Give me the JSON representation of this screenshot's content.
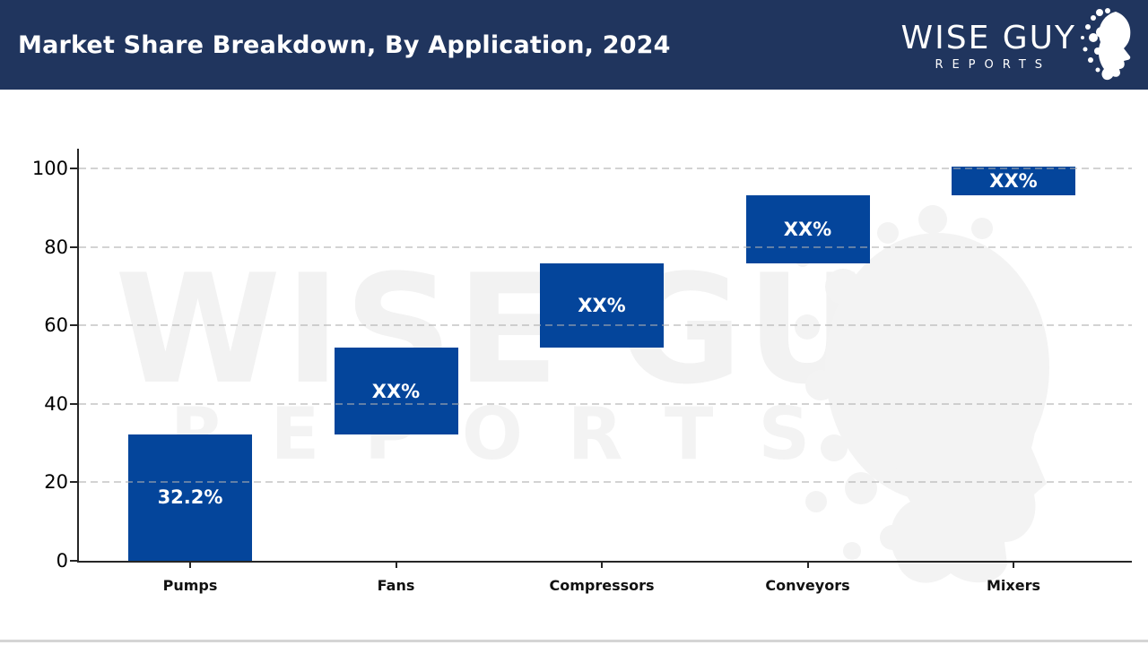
{
  "header": {
    "title": "Market Share Breakdown, By Application, 2024",
    "bg_color": "#20355e",
    "logo": {
      "line1": "WISE GUY",
      "line2": "REPORTS"
    }
  },
  "watermark": {
    "line1": "WISE GUY",
    "line2": "REPORTS"
  },
  "chart_data": {
    "type": "bar",
    "subtype": "waterfall",
    "title": "Market Share Breakdown, By Application, 2024",
    "categories": [
      "Pumps",
      "Fans",
      "Compressors",
      "Conveyors",
      "Mixers"
    ],
    "segments": [
      {
        "category": "Pumps",
        "start": 0,
        "end": 32.2,
        "value": 32.2,
        "label": "32.2%"
      },
      {
        "category": "Fans",
        "start": 32.2,
        "end": 54.3,
        "value": 22.1,
        "label": "XX%"
      },
      {
        "category": "Compressors",
        "start": 54.3,
        "end": 75.8,
        "value": 21.5,
        "label": "XX%"
      },
      {
        "category": "Conveyors",
        "start": 75.8,
        "end": 93.2,
        "value": 17.4,
        "label": "XX%"
      },
      {
        "category": "Mixers",
        "start": 93.2,
        "end": 100.4,
        "value": 7.2,
        "label": "XX%"
      }
    ],
    "yticks": [
      0,
      20,
      40,
      60,
      80,
      100
    ],
    "ylim": [
      0,
      105
    ],
    "xlabel": "",
    "ylabel": "",
    "grid": "horizontal-dashed",
    "legend": "none",
    "bar_color": "#04459b",
    "bar_label_color": "#ffffff",
    "axis_color": "#262626",
    "grid_color": "#d9d9d9"
  }
}
